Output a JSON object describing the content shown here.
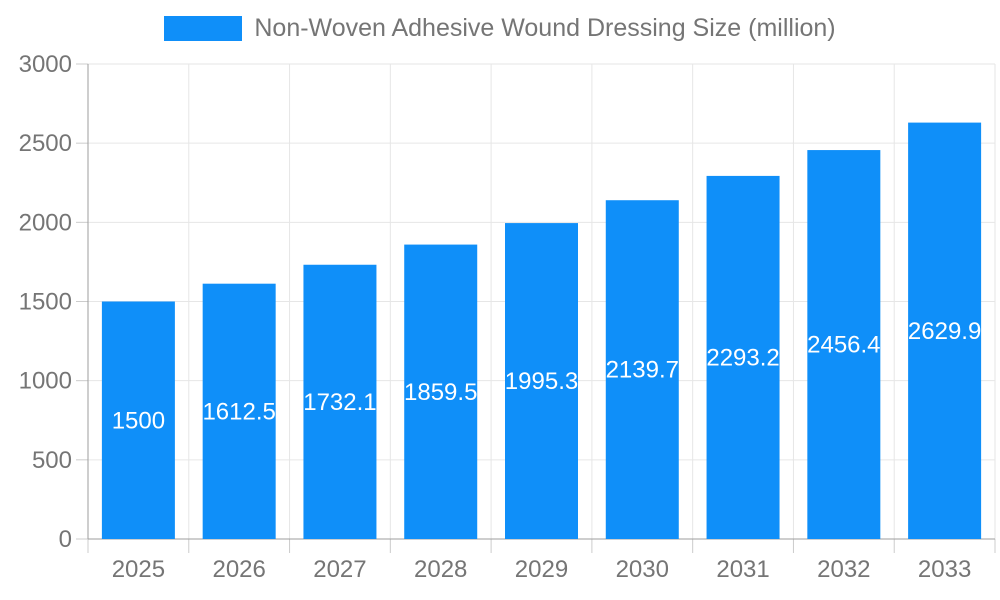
{
  "legend": {
    "label": "Non-Woven Adhesive Wound Dressing Size (million)"
  },
  "chart_data": {
    "type": "bar",
    "title": "Non-Woven Adhesive Wound Dressing Size (million)",
    "categories": [
      "2025",
      "2026",
      "2027",
      "2028",
      "2029",
      "2030",
      "2031",
      "2032",
      "2033"
    ],
    "values": [
      1500,
      1612.5,
      1732.1,
      1859.5,
      1995.3,
      2139.7,
      2293.2,
      2456.4,
      2629.9
    ],
    "xlabel": "",
    "ylabel": "",
    "ylim": [
      0,
      3000
    ],
    "ytick_step": 500,
    "grid": true,
    "legend_position": "top",
    "bar_color": "#0f8ff9",
    "value_label_color": "#ffffff",
    "axis_label_color": "#757575",
    "grid_color": "#e6e6e6",
    "axis_line_color": "#9e9e9e",
    "tick_color": "#cccccc"
  }
}
